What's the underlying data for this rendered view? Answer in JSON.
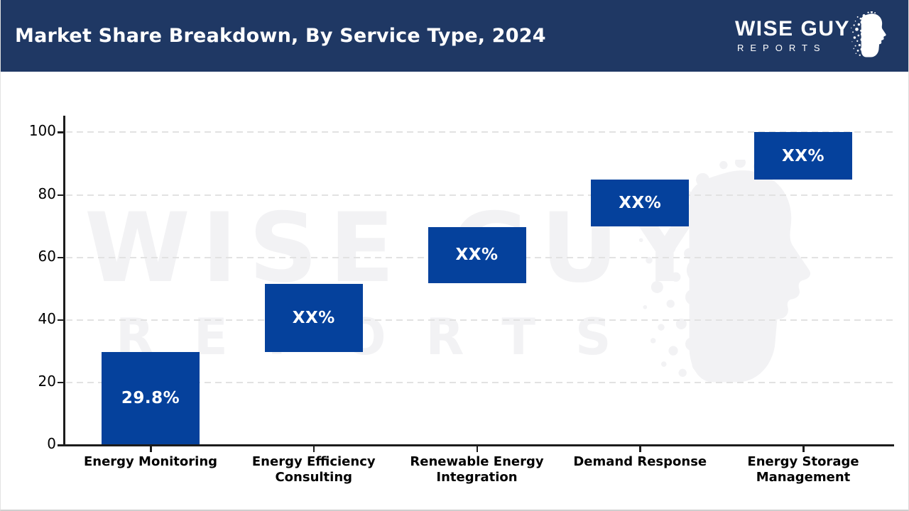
{
  "header": {
    "title": "Market Share Breakdown, By Service Type, 2024",
    "logo": {
      "line1": "WISE GUY",
      "line2": "REPORTS"
    }
  },
  "watermark": {
    "line1": "WISE GUY",
    "line2": "REPORTS"
  },
  "colors": {
    "header_bg": "#1f3864",
    "bar": "#05419c",
    "bar_label": "#ffffff",
    "gridline": "#e2e2e2",
    "axis": "#1c1c1c",
    "watermark": "#f2f2f4"
  },
  "chart_data": {
    "type": "bar",
    "subtype": "waterfall",
    "title": "Market Share Breakdown, By Service Type, 2024",
    "categories": [
      "Energy Monitoring",
      "Energy Efficiency Consulting",
      "Renewable Energy Integration",
      "Demand Response",
      "Energy Storage Management"
    ],
    "bars": [
      {
        "category": "Energy Monitoring",
        "start": 0,
        "end": 29.8,
        "label": "29.8%"
      },
      {
        "category": "Energy Efficiency Consulting",
        "start": 29.8,
        "end": 51.5,
        "label": "XX%"
      },
      {
        "category": "Renewable Energy Integration",
        "start": 51.8,
        "end": 69.8,
        "label": "XX%"
      },
      {
        "category": "Demand Response",
        "start": 70,
        "end": 85,
        "label": "XX%"
      },
      {
        "category": "Energy Storage Management",
        "start": 85,
        "end": 100,
        "label": "XX%"
      }
    ],
    "xlabel": "",
    "ylabel": "",
    "ylim": [
      0,
      100
    ],
    "yticks": [
      0,
      20,
      40,
      60,
      80,
      100
    ],
    "grid": "horizontal-dashed",
    "legend": "none"
  }
}
